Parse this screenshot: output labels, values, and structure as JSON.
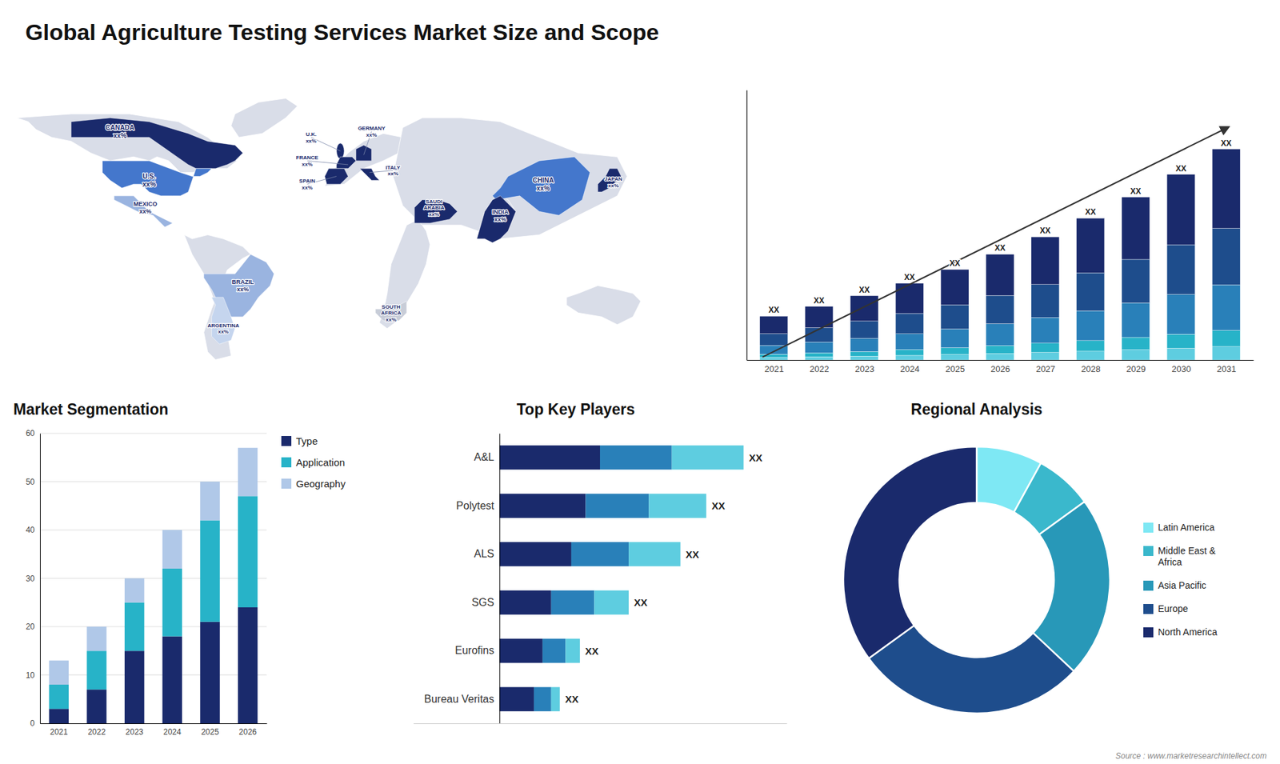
{
  "chart_data": [
    {
      "type": "map",
      "title": "Global Agriculture Testing Services Market Size and Scope",
      "categories": [
        "CANADA\nxx%",
        "U.S.\nxx%",
        "MEXICO\nxx%",
        "BRAZIL\nxx%",
        "ARGENTINA\nxx%",
        "U.K.\nxx%",
        "FRANCE\nxx%",
        "SPAIN\nxx%",
        "GERMANY\nxx%",
        "ITALY\nxx%",
        "SAUDI\nARABIA\nxx%",
        "SOUTH\nAFRICA\nxx%",
        "CHINA\nxx%",
        "INDIA\nxx%",
        "JAPAN\nxx%"
      ],
      "colors": [
        "#1a2a6c",
        "#4477cc",
        "#9ab4e0",
        "#9ab4e0",
        "#c5d5ee",
        "#1a2a6c",
        "#1a2a6c",
        "#1a2a6c",
        "#1a2a6c",
        "#1a2a6c",
        "#1a2a6c",
        "#c8cdd8",
        "#4477cc",
        "#1a2a6c",
        "#1a2a6c"
      ],
      "color": "#d9dde8",
      "annotations": [
        "Source : www.marketresearchintellect.com"
      ]
    },
    {
      "type": "bar",
      "stacked": true,
      "categories": [
        "2021",
        "2022",
        "2023",
        "2024",
        "2025",
        "2026",
        "2027",
        "2028",
        "2029",
        "2030",
        "2031"
      ],
      "series": [
        {
          "color": "#5ecde0",
          "values": [
            0.18,
            0.22,
            0.26,
            0.32,
            0.38,
            0.44,
            0.52,
            0.6,
            0.7,
            0.8,
            0.92
          ]
        },
        {
          "color": "#27b3c8",
          "values": [
            0.22,
            0.27,
            0.32,
            0.39,
            0.46,
            0.54,
            0.63,
            0.73,
            0.85,
            0.97,
            1.11
          ]
        },
        {
          "color": "#2980b9",
          "values": [
            0.6,
            0.74,
            0.9,
            1.08,
            1.28,
            1.5,
            1.76,
            2.04,
            2.36,
            2.72,
            3.12
          ]
        },
        {
          "color": "#1e4d8c",
          "values": [
            0.8,
            0.98,
            1.18,
            1.4,
            1.66,
            1.94,
            2.26,
            2.6,
            2.98,
            3.4,
            3.86
          ]
        },
        {
          "color": "#1a2a6c",
          "values": [
            1.2,
            1.46,
            1.74,
            2.06,
            2.42,
            2.82,
            3.26,
            3.74,
            4.26,
            4.82,
            5.43
          ]
        }
      ],
      "ylim": [
        0,
        18.4832
      ],
      "tick_labels": "x",
      "annotations": [
        "XX",
        "XX",
        "XX",
        "XX",
        "XX",
        "XX",
        "XX",
        "XX",
        "XX",
        "XX",
        "XX"
      ]
    },
    {
      "type": "bar",
      "stacked": true,
      "title": "Market Segmentation",
      "categories": [
        "2021",
        "2022",
        "2023",
        "2024",
        "2025",
        "2026"
      ],
      "series": [
        {
          "name": "Type",
          "color": "#1a2a6c",
          "values": [
            3,
            7,
            15,
            18,
            21,
            24
          ]
        },
        {
          "name": "Application",
          "color": "#27b3c8",
          "values": [
            5,
            8,
            10,
            14,
            21,
            23
          ]
        },
        {
          "name": "Geography",
          "color": "#b0c8e8",
          "values": [
            5,
            5,
            5,
            8,
            8,
            10
          ]
        }
      ],
      "ylim": [
        0,
        60
      ],
      "yticks": [
        0,
        10,
        20,
        30,
        40,
        50,
        60
      ],
      "grid": true,
      "legend": "right"
    },
    {
      "type": "bar",
      "orientation": "horizontal",
      "stacked": true,
      "title": "Top Key Players",
      "categories": [
        "A&L",
        "Polytest",
        "ALS",
        "SGS",
        "Eurofins",
        "Bureau Veritas"
      ],
      "series": [
        {
          "color": "#1a2a6c",
          "values": [
            3.5,
            3.0,
            2.5,
            1.8,
            1.5,
            1.2
          ]
        },
        {
          "color": "#2980b9",
          "values": [
            2.5,
            2.2,
            2.0,
            1.5,
            0.8,
            0.6
          ]
        },
        {
          "color": "#5ecde0",
          "values": [
            2.5,
            2.0,
            1.8,
            1.2,
            0.5,
            0.3
          ]
        }
      ],
      "xlim": [
        -3,
        10
      ],
      "tick_labels": "y",
      "annotations": [
        "XX",
        "XX",
        "XX",
        "XX",
        "XX",
        "XX"
      ]
    },
    {
      "type": "donut",
      "title": "Regional Analysis",
      "categories": [
        "Latin America",
        "Middle East &\nAfrica",
        "Asia Pacific",
        "Europe",
        "North America"
      ],
      "values": [
        8,
        7,
        22,
        28,
        35
      ],
      "colors": [
        "#7ee8f4",
        "#3ab8cc",
        "#2898b8",
        "#1e4d8c",
        "#1a2a6c"
      ],
      "legend": "right"
    }
  ]
}
